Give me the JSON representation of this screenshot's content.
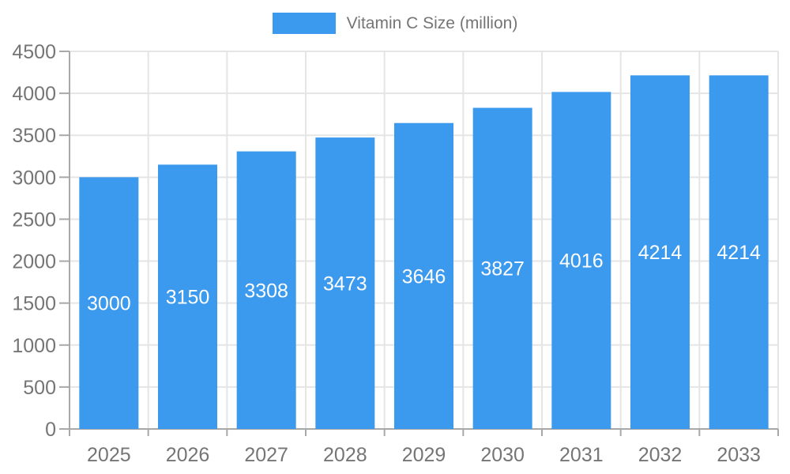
{
  "chart_data": {
    "type": "bar",
    "title": "Vitamin C Size (million)",
    "legend": {
      "label": "Vitamin C Size (million)",
      "position": "top-center"
    },
    "categories": [
      "2025",
      "2026",
      "2027",
      "2028",
      "2029",
      "2030",
      "2031",
      "2032",
      "2033"
    ],
    "series": [
      {
        "name": "Vitamin C Size (million)",
        "values": [
          3000,
          3150,
          3308,
          3473,
          3646,
          3827,
          4016,
          4214,
          4214
        ]
      }
    ],
    "xlabel": "",
    "ylabel": "",
    "ylim": [
      0,
      4500
    ],
    "yticks": [
      0,
      500,
      1000,
      1500,
      2000,
      2500,
      3000,
      3500,
      4000,
      4500
    ],
    "grid": true,
    "data_labels_inside_bars": true,
    "colors": {
      "bar": "#3b99ee",
      "data_label": "#ffffff",
      "axis_text": "#757575",
      "grid_line": "#e5e5e5",
      "axis_line": "#a8a8a8",
      "background": "#ffffff"
    }
  }
}
